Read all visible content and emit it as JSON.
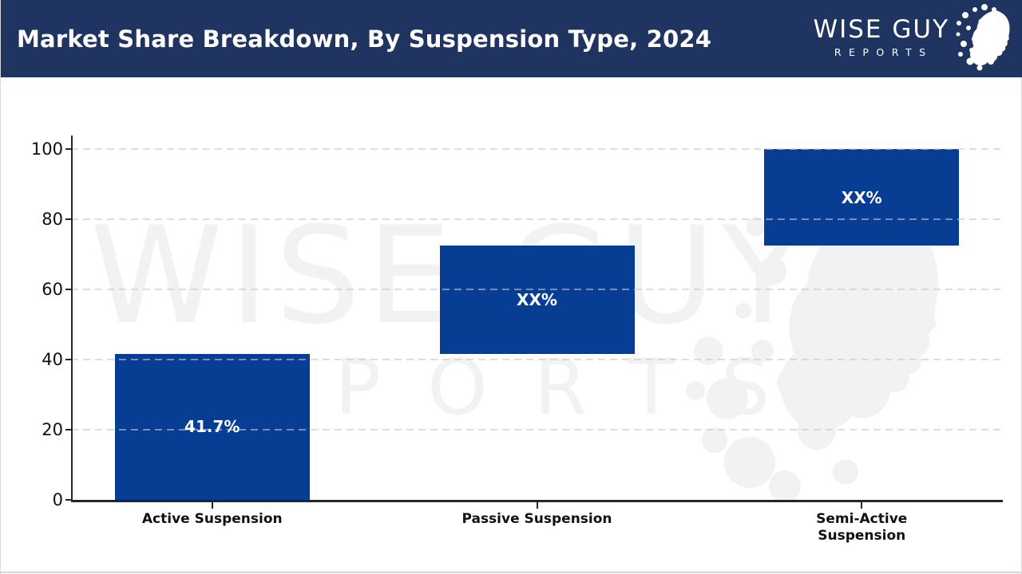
{
  "header": {
    "title": "Market Share Breakdown, By Suspension Type, 2024",
    "logo": {
      "line1": "WISE GUY",
      "line2": "REPORTS",
      "icon": "dotted-face-profile"
    },
    "bg_color": "#203461"
  },
  "watermark": {
    "line1": "WISE GUY",
    "line2": "REPORTS",
    "icon": "dotted-face-profile",
    "color": "#f1f2f4"
  },
  "chart_data": {
    "type": "bar",
    "variant": "floating-waterfall",
    "title": "Market Share Breakdown, By Suspension Type, 2024",
    "categories": [
      "Active Suspension",
      "Passive Suspension",
      "Semi-Active Suspension"
    ],
    "segments": [
      {
        "category": "Active Suspension",
        "start": 0,
        "end": 41.7,
        "label": "41.7%"
      },
      {
        "category": "Passive Suspension",
        "start": 41.7,
        "end": 72.4,
        "label": "XX%"
      },
      {
        "category": "Semi-Active Suspension",
        "start": 72.4,
        "end": 100,
        "label": "XX%"
      }
    ],
    "xlabel": "",
    "ylabel": "",
    "ylim": [
      0,
      100
    ],
    "yticks": [
      0,
      20,
      40,
      60,
      80,
      100
    ],
    "grid": {
      "horizontal": true,
      "style": "dashed",
      "drawn_over_bars": true
    },
    "legend": "none",
    "colors": {
      "bar": "#073E94",
      "bar_label": "#FFFFFF",
      "axis": "#262626",
      "tick_label": "#111111",
      "gridline": "#C6C6C6"
    }
  }
}
